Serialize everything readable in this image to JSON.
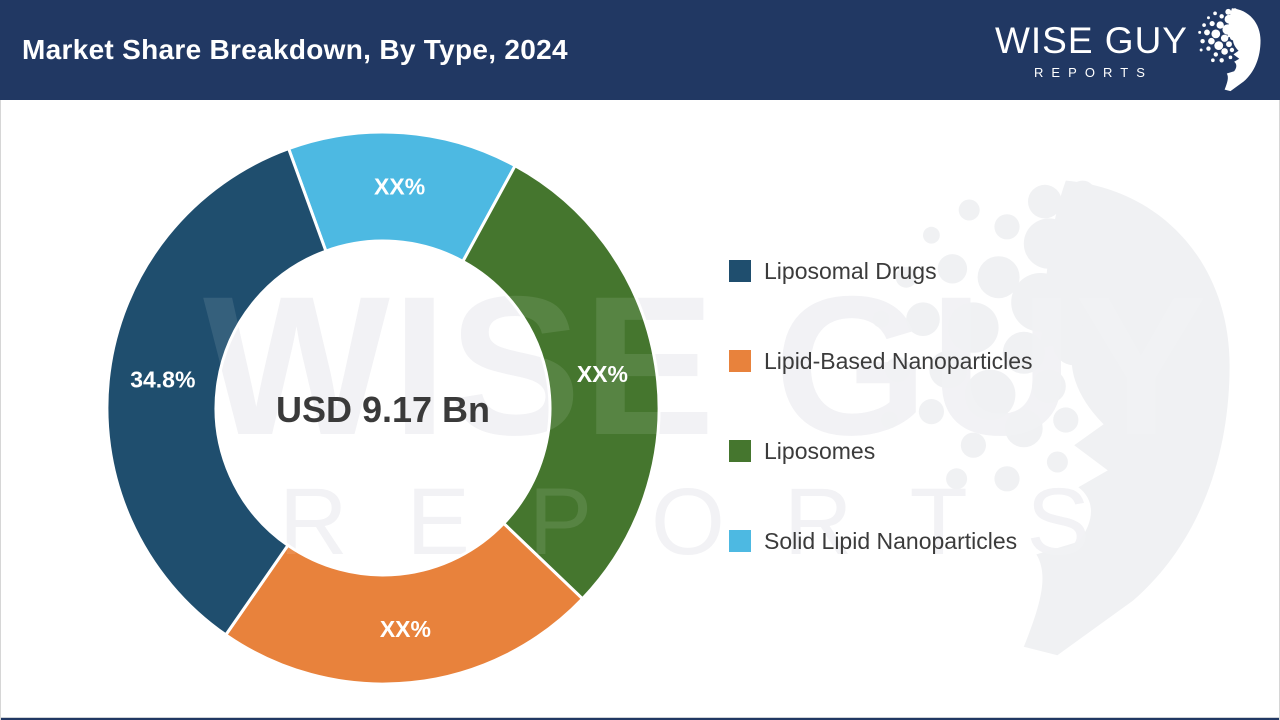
{
  "header": {
    "title": "Market Share Breakdown, By Type, 2024",
    "bg_color": "#213863",
    "logo": {
      "wordmark": "WISE GUY",
      "subtitle": "REPORTS"
    }
  },
  "watermark": {
    "line1": "WISE GUY",
    "line2": "REPORTS"
  },
  "chart_data": {
    "type": "donut",
    "title": "Market Share Breakdown, By Type, 2024",
    "center_label": "USD 9.17 Bn",
    "start_angle_deg": -20,
    "legend_position": "right",
    "segments": [
      {
        "label": "Liposomal Drugs",
        "percent_label": "34.8%",
        "value": 34.8,
        "color": "#1f4e6e"
      },
      {
        "label": "Lipid-Based Nanoparticles",
        "percent_label": "XX%",
        "value": 22.5,
        "color": "#e8823c"
      },
      {
        "label": "Liposomes",
        "percent_label": "XX%",
        "value": 29.2,
        "color": "#45762e"
      },
      {
        "label": "Solid Lipid Nanoparticles",
        "percent_label": "XX%",
        "value": 13.5,
        "color": "#4db9e2"
      }
    ]
  }
}
